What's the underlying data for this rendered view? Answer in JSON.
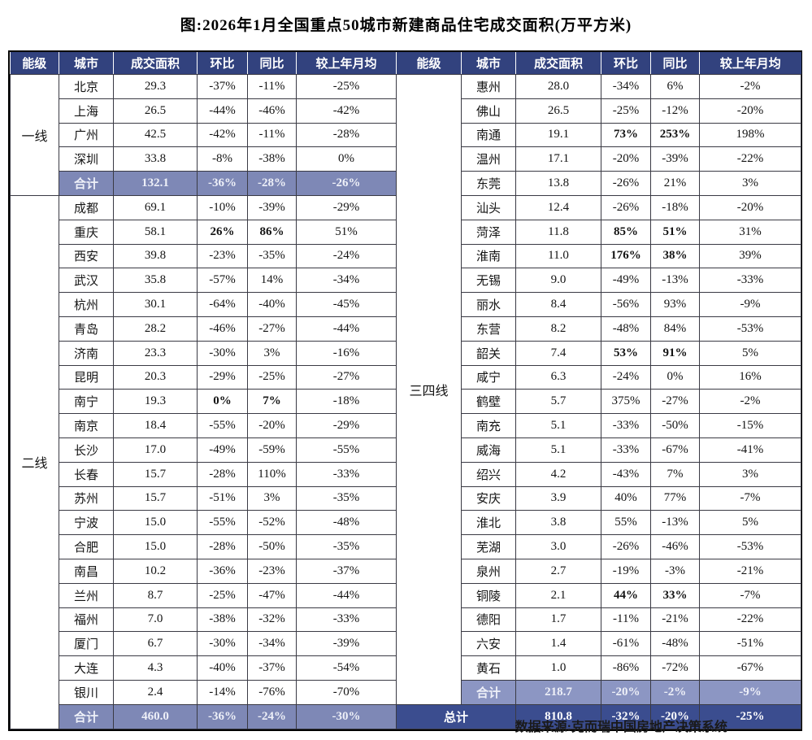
{
  "colors": {
    "header_bg": "#32427E",
    "subtotal_bg": "#7E88B6",
    "subtotal_light_bg": "#8C96C3",
    "total_bg": "#3B4D8F",
    "grid": "#3a3a44"
  },
  "chart_data": {
    "type": "table",
    "title": "图:2026年1月全国重点50城市新建商品住宅成交面积(万平方米)",
    "source": "数据来源:克而瑞中国房地产决策系统",
    "columns": [
      "能级",
      "城市",
      "成交面积",
      "环比",
      "同比",
      "较上年月均"
    ],
    "left": {
      "tiers": [
        {
          "name": "一线",
          "cities": [
            {
              "city": "北京",
              "area": "29.3",
              "mom": "-37%",
              "yoy": "-11%",
              "vs": "-25%"
            },
            {
              "city": "上海",
              "area": "26.5",
              "mom": "-44%",
              "yoy": "-46%",
              "vs": "-42%"
            },
            {
              "city": "广州",
              "area": "42.5",
              "mom": "-42%",
              "yoy": "-11%",
              "vs": "-28%"
            },
            {
              "city": "深圳",
              "area": "33.8",
              "mom": "-8%",
              "yoy": "-38%",
              "vs": "0%"
            }
          ],
          "subtotal": {
            "label": "合计",
            "area": "132.1",
            "mom": "-36%",
            "yoy": "-28%",
            "vs": "-26%"
          }
        },
        {
          "name": "二线",
          "cities": [
            {
              "city": "成都",
              "area": "69.1",
              "mom": "-10%",
              "yoy": "-39%",
              "vs": "-29%"
            },
            {
              "city": "重庆",
              "area": "58.1",
              "mom": "26%",
              "yoy": "86%",
              "vs": "51%",
              "bold": true
            },
            {
              "city": "西安",
              "area": "39.8",
              "mom": "-23%",
              "yoy": "-35%",
              "vs": "-24%"
            },
            {
              "city": "武汉",
              "area": "35.8",
              "mom": "-57%",
              "yoy": "14%",
              "vs": "-34%"
            },
            {
              "city": "杭州",
              "area": "30.1",
              "mom": "-64%",
              "yoy": "-40%",
              "vs": "-45%"
            },
            {
              "city": "青岛",
              "area": "28.2",
              "mom": "-46%",
              "yoy": "-27%",
              "vs": "-44%"
            },
            {
              "city": "济南",
              "area": "23.3",
              "mom": "-30%",
              "yoy": "3%",
              "vs": "-16%"
            },
            {
              "city": "昆明",
              "area": "20.3",
              "mom": "-29%",
              "yoy": "-25%",
              "vs": "-27%"
            },
            {
              "city": "南宁",
              "area": "19.3",
              "mom": "0%",
              "yoy": "7%",
              "vs": "-18%",
              "bold": true
            },
            {
              "city": "南京",
              "area": "18.4",
              "mom": "-55%",
              "yoy": "-20%",
              "vs": "-29%"
            },
            {
              "city": "长沙",
              "area": "17.0",
              "mom": "-49%",
              "yoy": "-59%",
              "vs": "-55%"
            },
            {
              "city": "长春",
              "area": "15.7",
              "mom": "-28%",
              "yoy": "110%",
              "vs": "-33%"
            },
            {
              "city": "苏州",
              "area": "15.7",
              "mom": "-51%",
              "yoy": "3%",
              "vs": "-35%"
            },
            {
              "city": "宁波",
              "area": "15.0",
              "mom": "-55%",
              "yoy": "-52%",
              "vs": "-48%"
            },
            {
              "city": "合肥",
              "area": "15.0",
              "mom": "-28%",
              "yoy": "-50%",
              "vs": "-35%"
            },
            {
              "city": "南昌",
              "area": "10.2",
              "mom": "-36%",
              "yoy": "-23%",
              "vs": "-37%"
            },
            {
              "city": "兰州",
              "area": "8.7",
              "mom": "-25%",
              "yoy": "-47%",
              "vs": "-44%"
            },
            {
              "city": "福州",
              "area": "7.0",
              "mom": "-38%",
              "yoy": "-32%",
              "vs": "-33%"
            },
            {
              "city": "厦门",
              "area": "6.7",
              "mom": "-30%",
              "yoy": "-34%",
              "vs": "-39%"
            },
            {
              "city": "大连",
              "area": "4.3",
              "mom": "-40%",
              "yoy": "-37%",
              "vs": "-54%"
            },
            {
              "city": "银川",
              "area": "2.4",
              "mom": "-14%",
              "yoy": "-76%",
              "vs": "-70%"
            }
          ],
          "subtotal": {
            "label": "合计",
            "area": "460.0",
            "mom": "-36%",
            "yoy": "-24%",
            "vs": "-30%"
          }
        }
      ]
    },
    "right": {
      "tiers": [
        {
          "name": "三四线",
          "cities": [
            {
              "city": "惠州",
              "area": "28.0",
              "mom": "-34%",
              "yoy": "6%",
              "vs": "-2%"
            },
            {
              "city": "佛山",
              "area": "26.5",
              "mom": "-25%",
              "yoy": "-12%",
              "vs": "-20%"
            },
            {
              "city": "南通",
              "area": "19.1",
              "mom": "73%",
              "yoy": "253%",
              "vs": "198%",
              "bold": true
            },
            {
              "city": "温州",
              "area": "17.1",
              "mom": "-20%",
              "yoy": "-39%",
              "vs": "-22%"
            },
            {
              "city": "东莞",
              "area": "13.8",
              "mom": "-26%",
              "yoy": "21%",
              "vs": "3%"
            },
            {
              "city": "汕头",
              "area": "12.4",
              "mom": "-26%",
              "yoy": "-18%",
              "vs": "-20%"
            },
            {
              "city": "菏泽",
              "area": "11.8",
              "mom": "85%",
              "yoy": "51%",
              "vs": "31%",
              "bold": true
            },
            {
              "city": "淮南",
              "area": "11.0",
              "mom": "176%",
              "yoy": "38%",
              "vs": "39%",
              "bold": true
            },
            {
              "city": "无锡",
              "area": "9.0",
              "mom": "-49%",
              "yoy": "-13%",
              "vs": "-33%"
            },
            {
              "city": "丽水",
              "area": "8.4",
              "mom": "-56%",
              "yoy": "93%",
              "vs": "-9%"
            },
            {
              "city": "东营",
              "area": "8.2",
              "mom": "-48%",
              "yoy": "84%",
              "vs": "-53%"
            },
            {
              "city": "韶关",
              "area": "7.4",
              "mom": "53%",
              "yoy": "91%",
              "vs": "5%",
              "bold": true
            },
            {
              "city": "咸宁",
              "area": "6.3",
              "mom": "-24%",
              "yoy": "0%",
              "vs": "16%"
            },
            {
              "city": "鹤壁",
              "area": "5.7",
              "mom": "375%",
              "yoy": "-27%",
              "vs": "-2%"
            },
            {
              "city": "南充",
              "area": "5.1",
              "mom": "-33%",
              "yoy": "-50%",
              "vs": "-15%"
            },
            {
              "city": "威海",
              "area": "5.1",
              "mom": "-33%",
              "yoy": "-67%",
              "vs": "-41%"
            },
            {
              "city": "绍兴",
              "area": "4.2",
              "mom": "-43%",
              "yoy": "7%",
              "vs": "3%"
            },
            {
              "city": "安庆",
              "area": "3.9",
              "mom": "40%",
              "yoy": "77%",
              "vs": "-7%"
            },
            {
              "city": "淮北",
              "area": "3.8",
              "mom": "55%",
              "yoy": "-13%",
              "vs": "5%"
            },
            {
              "city": "芜湖",
              "area": "3.0",
              "mom": "-26%",
              "yoy": "-46%",
              "vs": "-53%"
            },
            {
              "city": "泉州",
              "area": "2.7",
              "mom": "-19%",
              "yoy": "-3%",
              "vs": "-21%"
            },
            {
              "city": "铜陵",
              "area": "2.1",
              "mom": "44%",
              "yoy": "33%",
              "vs": "-7%",
              "bold": true
            },
            {
              "city": "德阳",
              "area": "1.7",
              "mom": "-11%",
              "yoy": "-21%",
              "vs": "-22%"
            },
            {
              "city": "六安",
              "area": "1.4",
              "mom": "-61%",
              "yoy": "-48%",
              "vs": "-51%"
            },
            {
              "city": "黄石",
              "area": "1.0",
              "mom": "-86%",
              "yoy": "-72%",
              "vs": "-67%"
            }
          ],
          "subtotal": {
            "label": "合计",
            "area": "218.7",
            "mom": "-20%",
            "yoy": "-2%",
            "vs": "-9%"
          }
        }
      ],
      "grand_total": {
        "label": "总计",
        "area": "810.8",
        "mom": "-32%",
        "yoy": "-20%",
        "vs": "-25%"
      }
    }
  }
}
